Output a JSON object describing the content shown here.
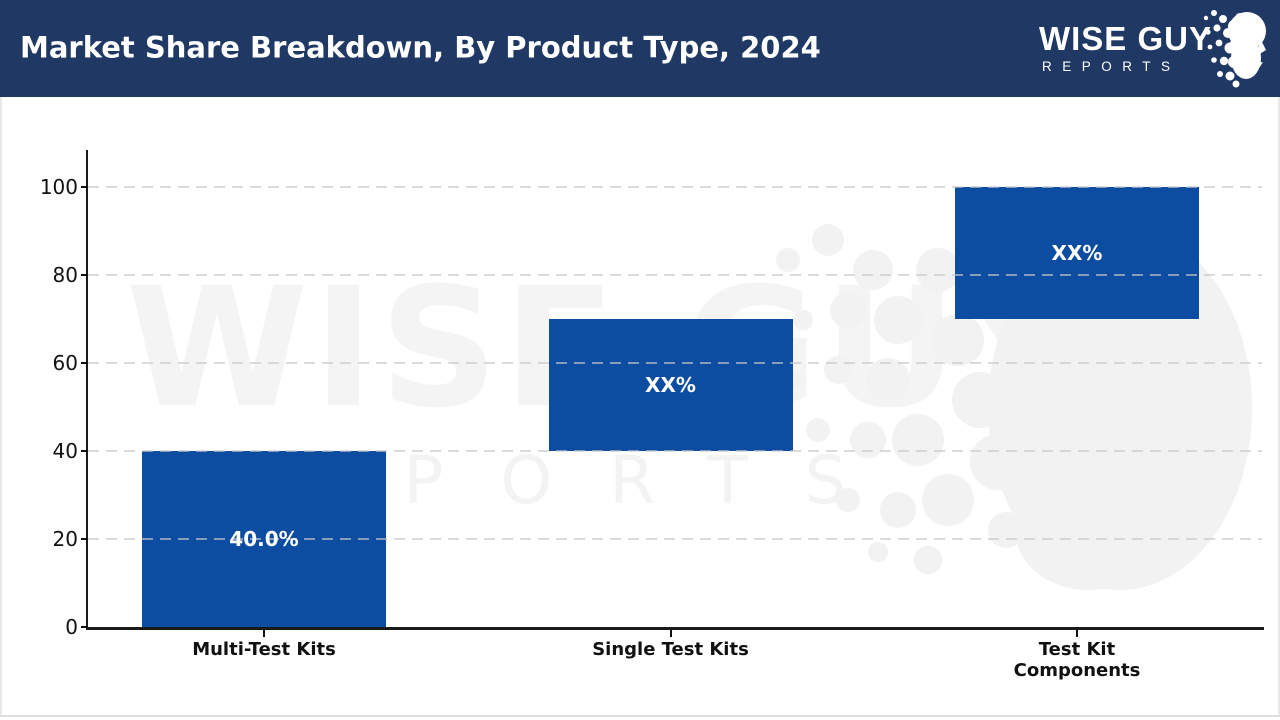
{
  "header": {
    "title": "Market Share Breakdown, By Product Type, 2024",
    "logo": {
      "wordmark": "WISE GUY",
      "subtext": "REPORTS"
    }
  },
  "watermark": {
    "line1": "WISE GUY",
    "line2": "REPORTS"
  },
  "colors": {
    "header_bg": "#1f3864",
    "bar": "#0c4da2",
    "grid": "#d9d9d9",
    "axis": "#111111",
    "bar_label_text": "#ffffff",
    "watermark": "#f4f4f4"
  },
  "chart_data": {
    "type": "bar",
    "subtype": "floating-segment-waterfall",
    "title": "Market Share Breakdown, By Product Type, 2024",
    "categories": [
      "Multi-Test Kits",
      "Single Test Kits",
      "Test Kit Components"
    ],
    "series": [
      {
        "name": "Market share (%)",
        "segments": [
          {
            "category": "Multi-Test Kits",
            "start": 0,
            "end": 40,
            "label": "40.0%"
          },
          {
            "category": "Single Test Kits",
            "start": 40,
            "end": 70,
            "label": "XX%"
          },
          {
            "category": "Test Kit Components",
            "start": 70,
            "end": 100,
            "label": "XX%"
          }
        ]
      }
    ],
    "ylim": [
      0,
      100
    ],
    "yticks": [
      0,
      20,
      40,
      60,
      80,
      100
    ],
    "xlabel": "",
    "ylabel": "",
    "grid": "horizontal-dashed",
    "legend": "none",
    "bar_color": "#0c4da2"
  }
}
